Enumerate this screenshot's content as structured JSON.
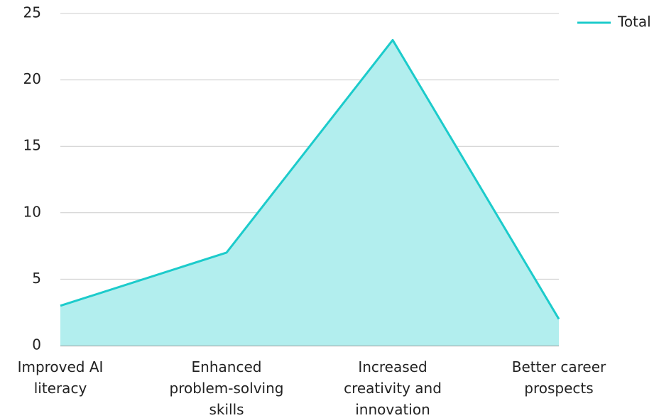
{
  "chart_data": {
    "type": "area",
    "categories": [
      "Improved AI literacy",
      "Enhanced problem-solving skills",
      "Increased creativity and innovation",
      "Better career prospects"
    ],
    "series": [
      {
        "name": "Total",
        "color": "#1ccbcb",
        "fill": "#b2eeee",
        "values": [
          3,
          7,
          23,
          2
        ]
      }
    ],
    "ylim": [
      0,
      25
    ],
    "yticks": [
      0,
      5,
      10,
      15,
      20,
      25
    ],
    "grid": true,
    "legend": "top-right"
  }
}
